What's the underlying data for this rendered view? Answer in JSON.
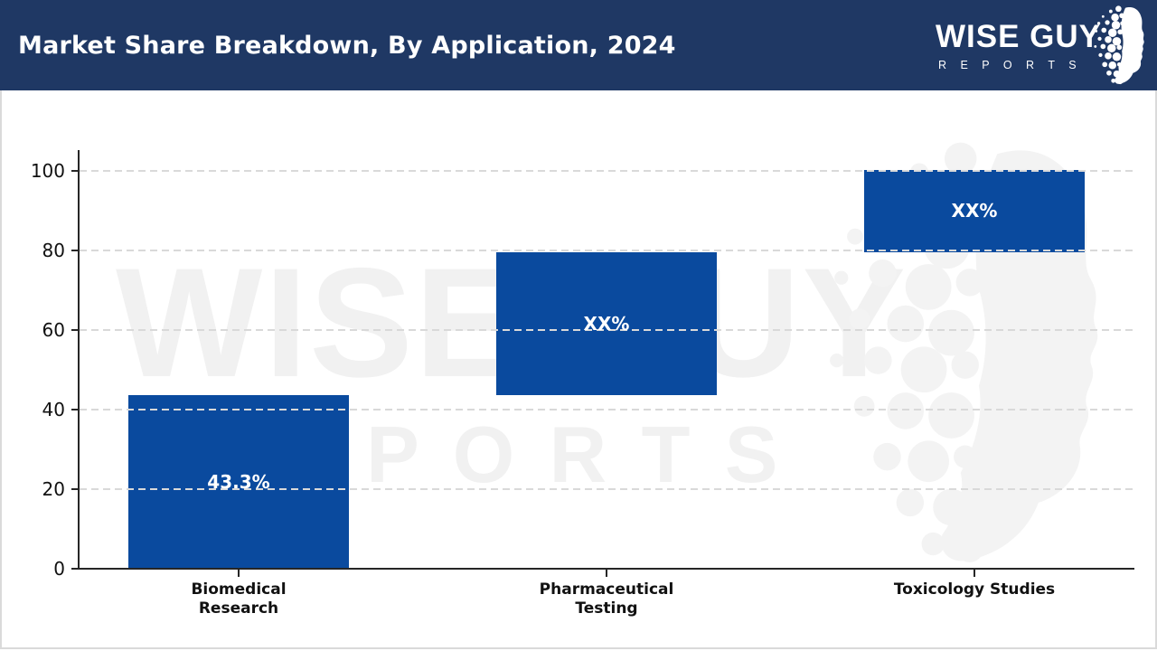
{
  "header": {
    "title": "Market Share Breakdown, By Application, 2024",
    "logo": {
      "line1": "WISE GUY",
      "line2": "R E P O R T S"
    }
  },
  "watermark": {
    "line1": "WISE GUY",
    "line2": "R E P O R T S"
  },
  "colors": {
    "header_bg": "#1f3864",
    "bar_blue": "#0a4a9e",
    "axis": "#262626",
    "tick_text": "#111111",
    "grid": "#d9d9d9",
    "watermark_gray": "#f1f1f1",
    "frame_border": "#dadada"
  },
  "chart_data": {
    "type": "bar",
    "subtype": "waterfall-cumulative",
    "title": "Market Share Breakdown, By Application, 2024",
    "categories": [
      [
        "Biomedical",
        "Research"
      ],
      [
        "Pharmaceutical",
        "Testing"
      ],
      [
        "Toxicology Studies"
      ]
    ],
    "segments": [
      {
        "label": "Biomedical Research",
        "start": 0,
        "end": 43.3,
        "value_label": "43.3%"
      },
      {
        "label": "Pharmaceutical Testing",
        "start": 43.3,
        "end": 79.4,
        "value_label": "XX%"
      },
      {
        "label": "Toxicology Studies",
        "start": 79.4,
        "end": 100,
        "value_label": "XX%"
      }
    ],
    "y_ticks": [
      0,
      20,
      40,
      60,
      80,
      100
    ],
    "ylim": [
      0,
      105
    ],
    "xlabel": "",
    "ylabel": "",
    "grid": "horizontal-dashed",
    "grid_above_bars": true,
    "legend": "none",
    "bar_color": "#0a4a9e",
    "value_label_color": "#ffffff"
  }
}
